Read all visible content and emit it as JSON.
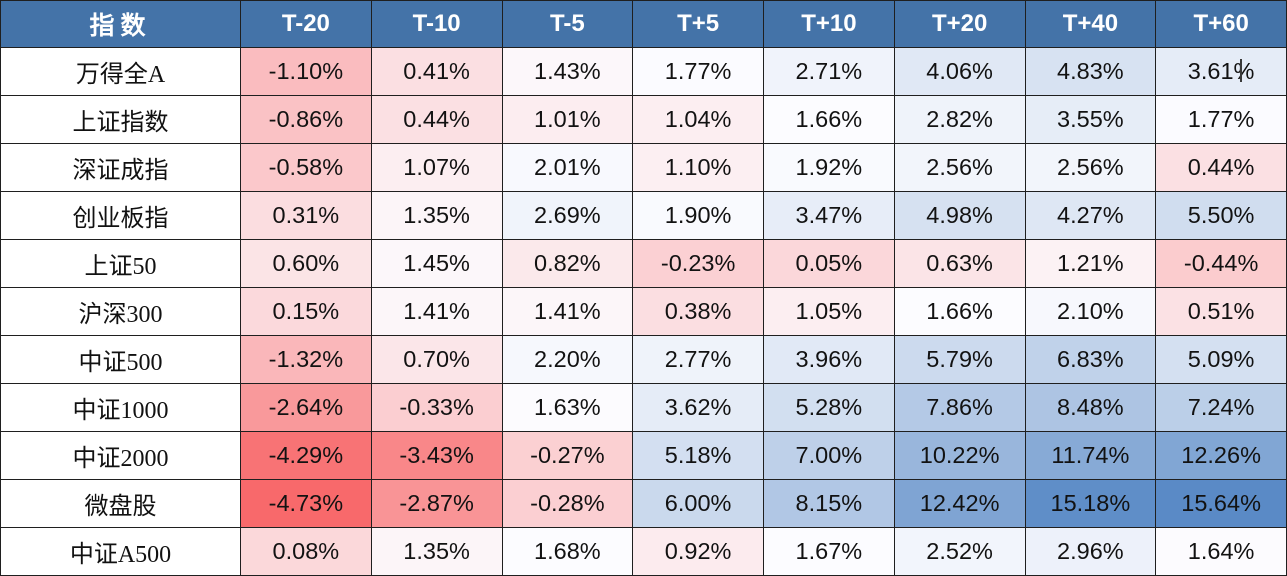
{
  "chart_data": {
    "type": "heatmap",
    "title": "",
    "row_label_header": "指数",
    "columns": [
      "T-20",
      "T-10",
      "T-5",
      "T+5",
      "T+10",
      "T+20",
      "T+40",
      "T+60"
    ],
    "value_unit": "%",
    "rows": [
      {
        "name": "万得全A",
        "values": [
          -1.1,
          0.41,
          1.43,
          1.77,
          2.71,
          4.06,
          4.83,
          3.61
        ]
      },
      {
        "name": "上证指数",
        "values": [
          -0.86,
          0.44,
          1.01,
          1.04,
          1.66,
          2.82,
          3.55,
          1.77
        ]
      },
      {
        "name": "深证成指",
        "values": [
          -0.58,
          1.07,
          2.01,
          1.1,
          1.92,
          2.56,
          2.56,
          0.44
        ]
      },
      {
        "name": "创业板指",
        "values": [
          0.31,
          1.35,
          2.69,
          1.9,
          3.47,
          4.98,
          4.27,
          5.5
        ]
      },
      {
        "name": "上证50",
        "values": [
          0.6,
          1.45,
          0.82,
          -0.23,
          0.05,
          0.63,
          1.21,
          -0.44
        ]
      },
      {
        "name": "沪深300",
        "values": [
          0.15,
          1.41,
          1.41,
          0.38,
          1.05,
          1.66,
          2.1,
          0.51
        ]
      },
      {
        "name": "中证500",
        "values": [
          -1.32,
          0.7,
          2.2,
          2.77,
          3.96,
          5.79,
          6.83,
          5.09
        ]
      },
      {
        "name": "中证1000",
        "values": [
          -2.64,
          -0.33,
          1.63,
          3.62,
          5.28,
          7.86,
          8.48,
          7.24
        ]
      },
      {
        "name": "中证2000",
        "values": [
          -4.29,
          -3.43,
          -0.27,
          5.18,
          7.0,
          10.22,
          11.74,
          12.26
        ]
      },
      {
        "name": "微盘股",
        "values": [
          -4.73,
          -2.87,
          -0.28,
          6.0,
          8.15,
          12.42,
          15.18,
          15.64
        ]
      },
      {
        "name": "中证A500",
        "values": [
          0.08,
          1.35,
          1.68,
          0.92,
          1.67,
          2.52,
          2.96,
          1.64
        ]
      }
    ],
    "color_scale": {
      "min_color": "#F8696B",
      "mid_color": "#FCFCFF",
      "max_color": "#5A8AC6",
      "midpoint_rule": "median"
    },
    "layout_hints": {
      "header_bg": "#4473A8",
      "header_text_color": "#FFFFFF",
      "top_border_color": "#17375E",
      "grid_line_color": "#1F1F1F",
      "value_decimals": 2
    }
  }
}
